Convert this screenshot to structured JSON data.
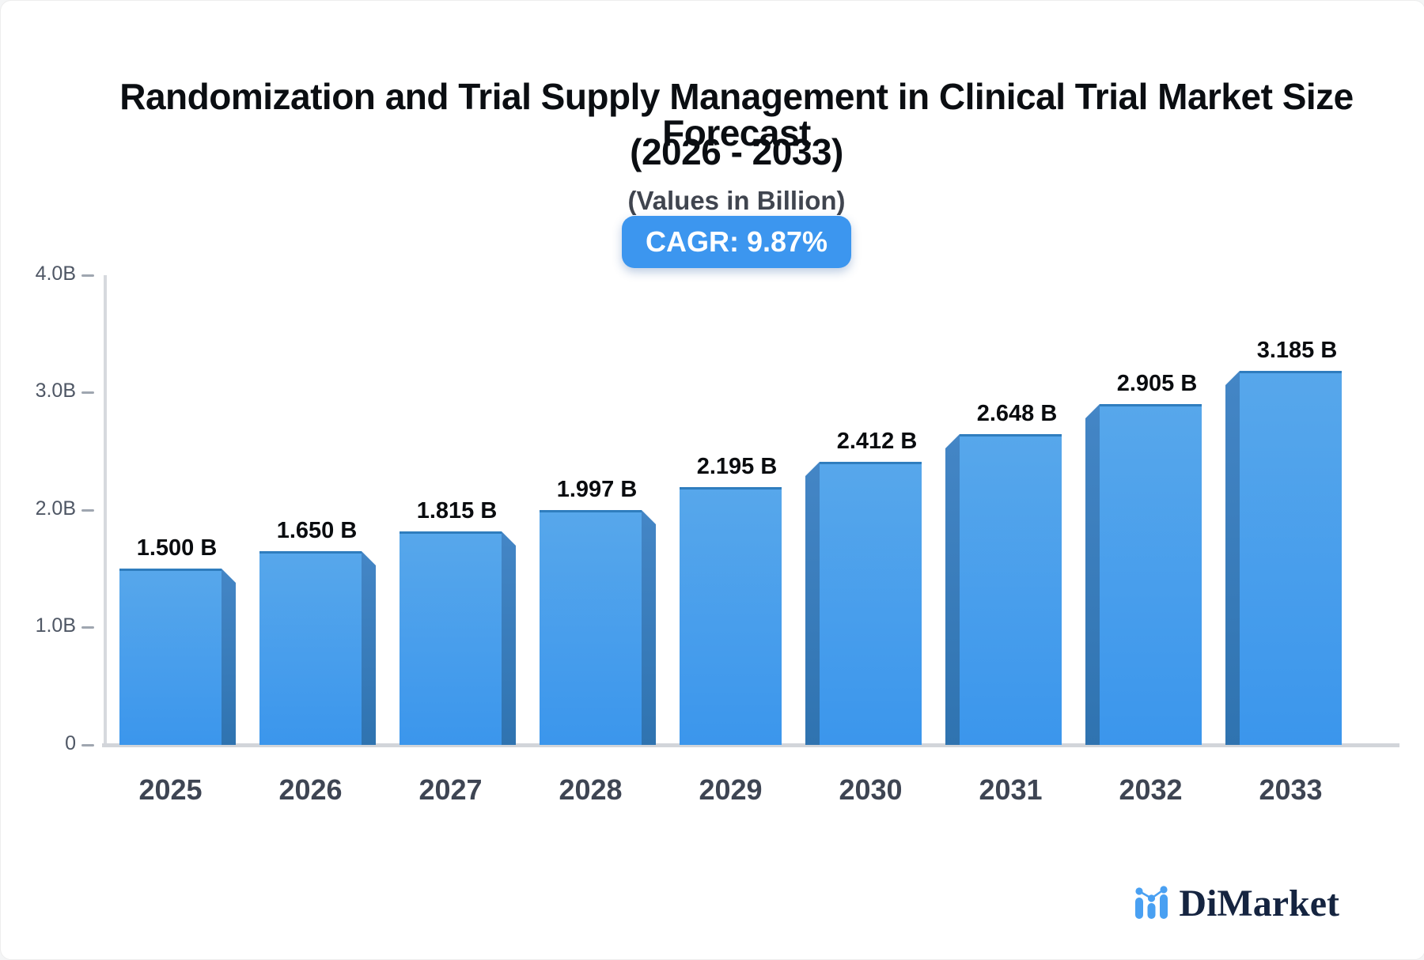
{
  "header": {
    "title_line1": "Randomization and Trial Supply Management in Clinical Trial Market Size Forecast",
    "title_line2": "(2026 - 2033)",
    "subtitle": "(Values in Billion)",
    "cagr_badge": "CAGR: 9.87%"
  },
  "chart_data": {
    "type": "bar",
    "title": "Randomization and Trial Supply Management in Clinical Trial Market Size Forecast (2026 - 2033)",
    "units": "Billion",
    "categories": [
      "2025",
      "2026",
      "2027",
      "2028",
      "2029",
      "2030",
      "2031",
      "2032",
      "2033"
    ],
    "values": [
      1.5,
      1.65,
      1.815,
      1.997,
      2.195,
      2.412,
      2.648,
      2.905,
      3.185
    ],
    "bar_labels": [
      "1.500 B",
      "1.650 B",
      "1.815 B",
      "1.997 B",
      "2.195 B",
      "2.412 B",
      "2.648 B",
      "2.905 B",
      "3.185 B"
    ],
    "y_ticks": [
      {
        "value": 4,
        "label": "4.0B"
      },
      {
        "value": 3,
        "label": "3.0B"
      },
      {
        "value": 2,
        "label": "2.0B"
      },
      {
        "value": 1,
        "label": "1.0B"
      },
      {
        "value": 0,
        "label": "0"
      }
    ],
    "ylim": [
      0,
      4
    ],
    "xlabel": "",
    "ylabel": "",
    "legend": null,
    "grid": false,
    "style_3d": true,
    "colors": {
      "bar_front_top": "#57a7eb",
      "bar_front_bottom": "#3b96ec",
      "bar_top_edge": "#2f7dbe",
      "bar_side_top": "#4486c6",
      "bar_side_bottom": "#2f73b0",
      "badge_bg": "#3c96ef",
      "badge_text": "#ffffff",
      "axis_line": "#d6d9de",
      "tick_label": "#4f5765",
      "year_label": "#3e4553",
      "value_label": "#0a0c0f"
    }
  },
  "footer": {
    "brand": "DiMarket",
    "logo_icon": "bar-line-chart-icon"
  }
}
